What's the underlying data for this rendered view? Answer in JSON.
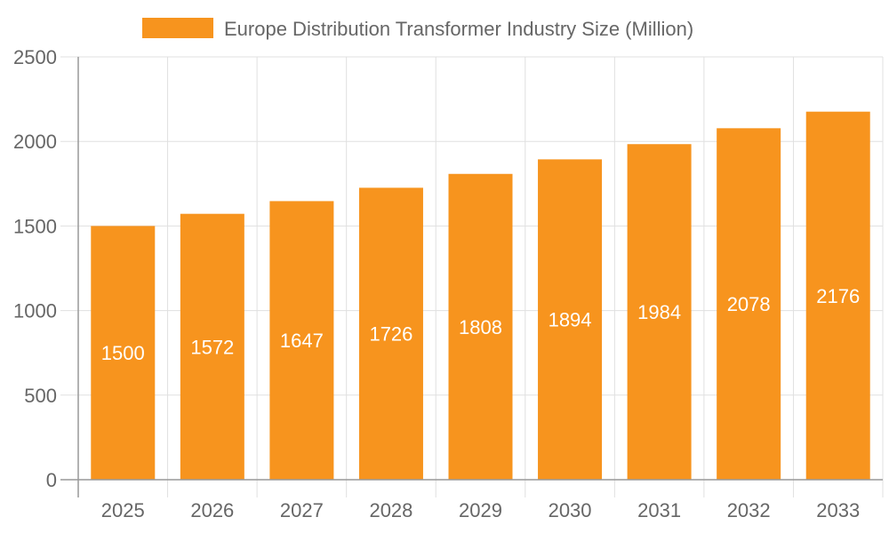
{
  "chart_data": {
    "type": "bar",
    "categories": [
      "2025",
      "2026",
      "2027",
      "2028",
      "2029",
      "2030",
      "2031",
      "2032",
      "2033"
    ],
    "series": [
      {
        "name": "Europe Distribution Transformer Industry Size (Million)",
        "values": [
          1500,
          1572,
          1647,
          1726,
          1808,
          1894,
          1984,
          2078,
          2176
        ],
        "color": "#f7941e"
      }
    ],
    "ylim": [
      0,
      2500
    ],
    "yticks": [
      0,
      500,
      1000,
      1500,
      2000,
      2500
    ],
    "grid": true,
    "legend_position": "top",
    "data_labels": true,
    "title": "",
    "xlabel": "",
    "ylabel": ""
  }
}
